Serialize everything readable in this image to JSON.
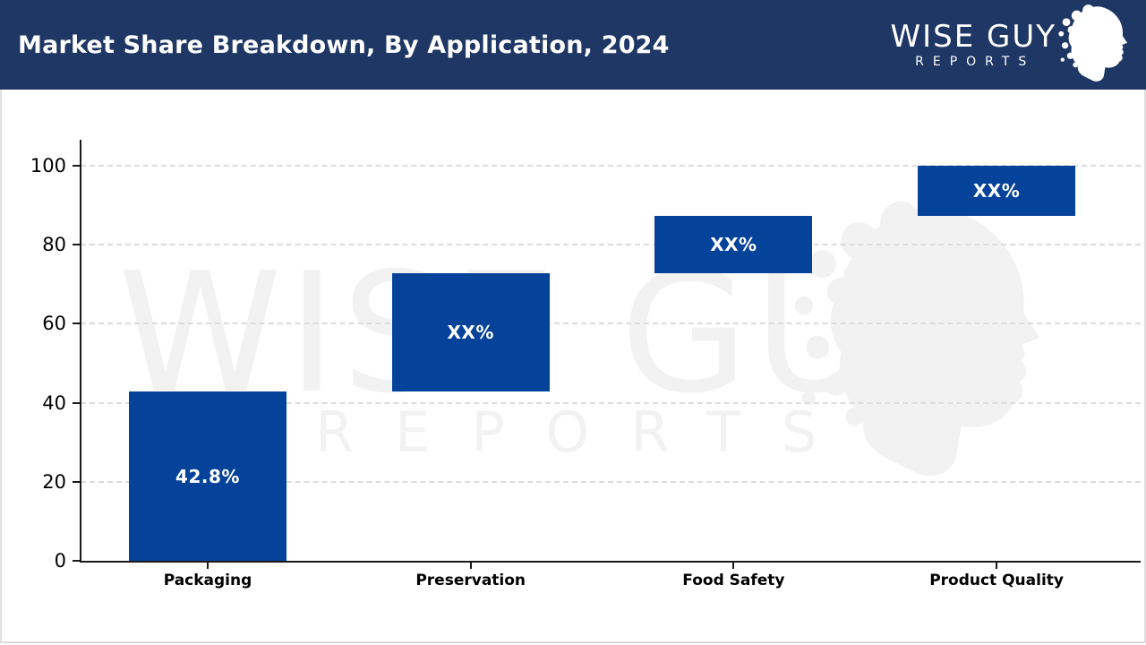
{
  "header": {
    "title": "Market Share Breakdown, By Application, 2024",
    "logo": {
      "wordmark": "WISE GUY",
      "subtitle": "REPORTS"
    }
  },
  "watermark": {
    "line1": "WISE GUY",
    "line2": "REPORTS"
  },
  "colors": {
    "header_bg": "#1e3764",
    "bar": "#05429a",
    "grid": "#dcdcdc",
    "axis": "#1a1a1a",
    "bar_label": "#ffffff",
    "watermark": "#f2f2f2"
  },
  "chart_data": {
    "type": "bar",
    "subtype": "waterfall",
    "title": "Market Share Breakdown, By Application, 2024",
    "xlabel": "",
    "ylabel": "",
    "categories": [
      "Packaging",
      "Preservation",
      "Food Safety",
      "Product Quality"
    ],
    "segments": [
      {
        "category": "Packaging",
        "start": 0,
        "end": 42.8,
        "label": "42.8%"
      },
      {
        "category": "Preservation",
        "start": 42.8,
        "end": 72.8,
        "label": "XX%"
      },
      {
        "category": "Food Safety",
        "start": 72.8,
        "end": 87.2,
        "label": "XX%"
      },
      {
        "category": "Product Quality",
        "start": 87.2,
        "end": 100,
        "label": "XX%"
      }
    ],
    "yticks": [
      0,
      20,
      40,
      60,
      80,
      100
    ],
    "ylim": [
      0,
      106
    ],
    "grid": "horizontal-dashed",
    "legend": "none"
  }
}
